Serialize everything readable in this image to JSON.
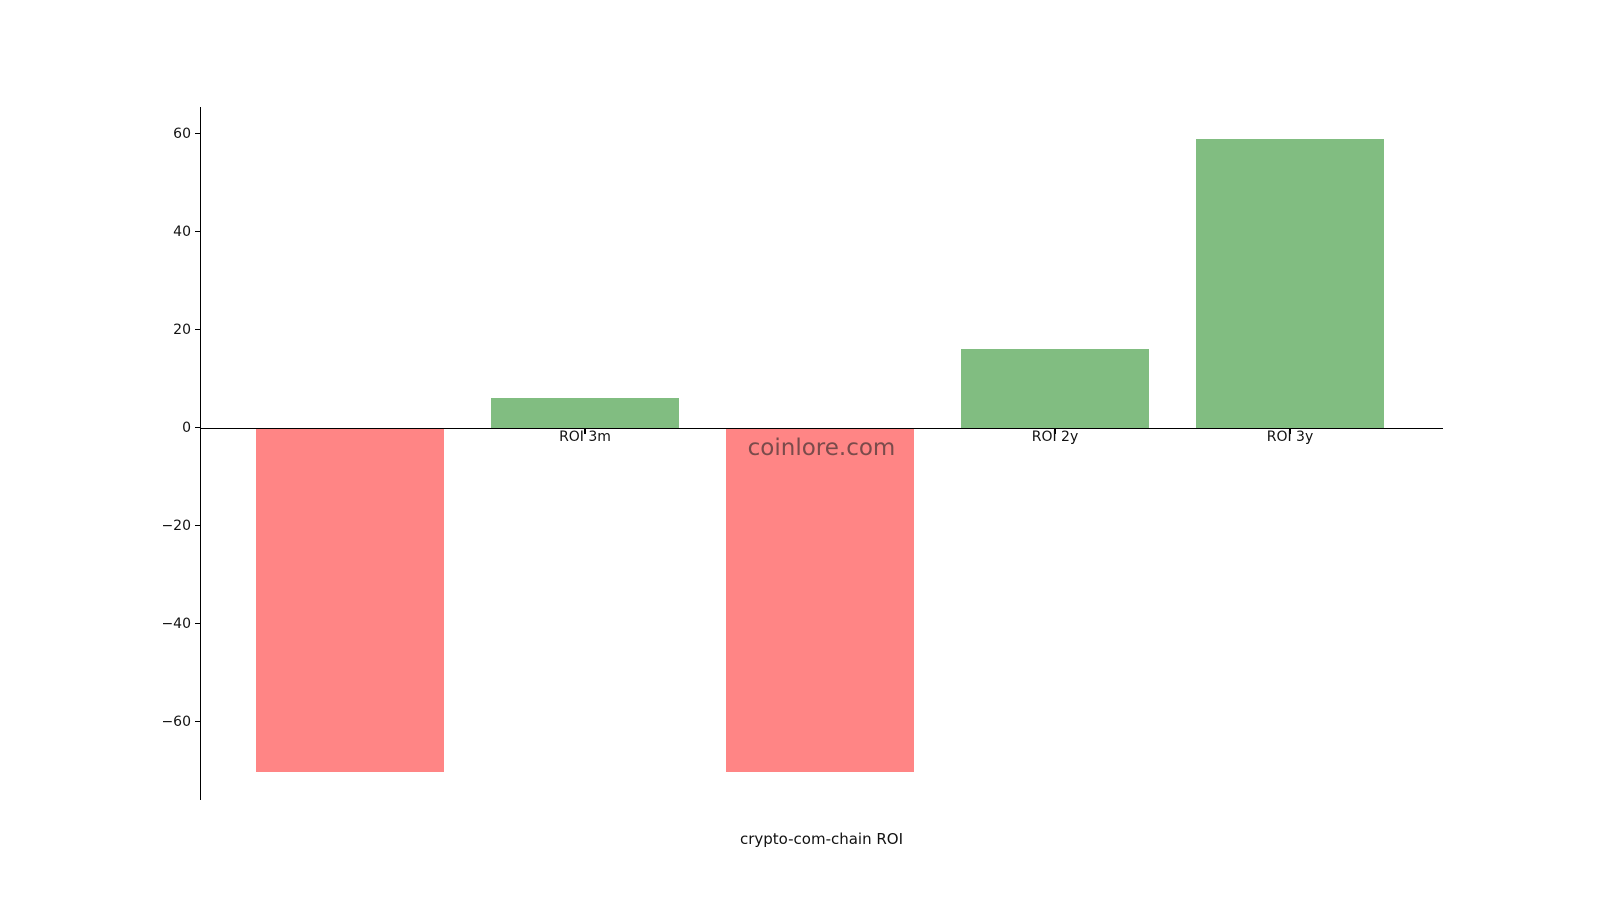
{
  "page": {
    "background": "#ffffff"
  },
  "watermark": {
    "text": "coinlore.com"
  },
  "chart_data": {
    "type": "bar",
    "title": "crypto-com-chain ROI",
    "categories": [
      "",
      "ROI 3m",
      "",
      "ROI 2y",
      "ROI 3y"
    ],
    "values": [
      -70,
      6,
      -70,
      16,
      59
    ],
    "bar_colors": [
      "#ff8585",
      "#81bd81",
      "#ff8585",
      "#81bd81",
      "#81bd81"
    ],
    "colors": {
      "positive": "#81bd81",
      "negative": "#ff8585",
      "axis": "#000000"
    },
    "y_ticks": [
      {
        "value": 60,
        "label": "60"
      },
      {
        "value": 40,
        "label": "40"
      },
      {
        "value": 20,
        "label": "20"
      },
      {
        "value": 0,
        "label": "0"
      },
      {
        "value": -20,
        "label": "−20"
      },
      {
        "value": -40,
        "label": "−40"
      },
      {
        "value": -60,
        "label": "−60"
      }
    ],
    "ylim": [
      -76,
      65.5
    ],
    "xlabel": "crypto-com-chain ROI",
    "ylabel": "",
    "grid": false,
    "legend": "none"
  }
}
